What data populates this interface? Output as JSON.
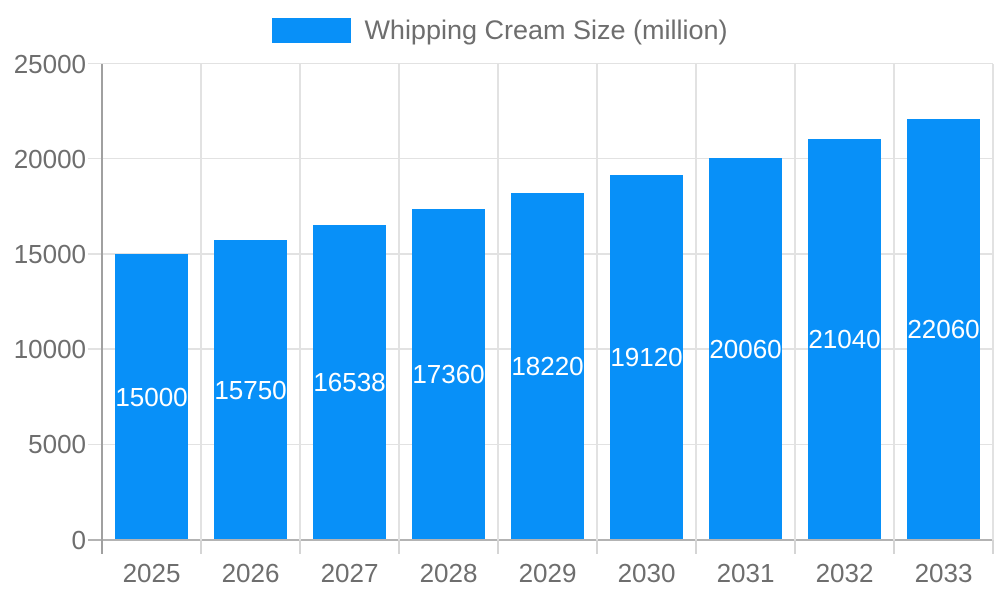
{
  "legend": {
    "label": "Whipping Cream Size (million)"
  },
  "chart_data": {
    "type": "bar",
    "title": "",
    "categories": [
      "2025",
      "2026",
      "2027",
      "2028",
      "2029",
      "2030",
      "2031",
      "2032",
      "2033"
    ],
    "series": [
      {
        "name": "Whipping Cream Size (million)",
        "values": [
          15000,
          15750,
          16538,
          17360,
          18220,
          19120,
          20060,
          21040,
          22060
        ]
      }
    ],
    "bar_labels": [
      "15000",
      "15750",
      "16538",
      "17360",
      "18220",
      "19120",
      "20060",
      "21040",
      "22060"
    ],
    "xlabel": "",
    "ylabel": "",
    "ylim": [
      0,
      25000
    ],
    "ytick_step": 5000,
    "ytick_labels": [
      "0",
      "5000",
      "10000",
      "15000",
      "20000",
      "25000"
    ],
    "grid": true,
    "legend_position": "top-center",
    "colors": {
      "bar": "#0890F8",
      "bar_label_text": "#ffffff",
      "axis_text": "#6e6e6e",
      "legend_text": "#6e6e6e",
      "grid_line": "#e2e2e2",
      "y_axis_line": "#a0a0a0",
      "x_axis_line": "#b3b3b3",
      "x_tick_line": "#d5d5d5"
    }
  }
}
